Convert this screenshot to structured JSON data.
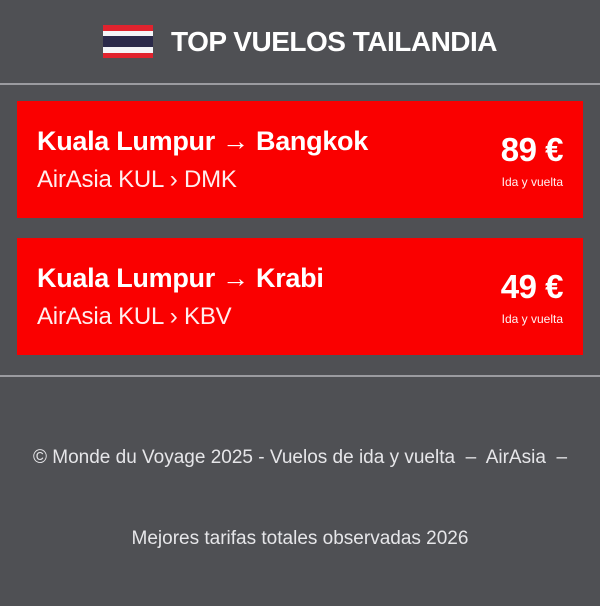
{
  "page": {
    "background": "#4f5054",
    "divider_color": "#9b9ba0"
  },
  "header": {
    "title": "TOP VUELOS TAILANDIA",
    "flag": {
      "name": "thailand-flag",
      "red": "#e0232e",
      "white": "#f4f5f8",
      "blue": "#2b2a4a"
    }
  },
  "cards": [
    {
      "route": "Kuala Lumpur → Bangkok",
      "detail": "AirAsia KUL › DMK",
      "price": "89 €",
      "price_note": "Ida y vuelta",
      "background": "#fa0000"
    },
    {
      "route": "Kuala Lumpur → Krabi",
      "detail": "AirAsia KUL › KBV",
      "price": "49 €",
      "price_note": "Ida y vuelta",
      "background": "#fa0000"
    }
  ],
  "footer": {
    "line1": "© Monde du Voyage 2025 - Vuelos de ida y vuelta  –  AirAsia  –",
    "line2": "Mejores tarifas totales observadas 2026"
  }
}
